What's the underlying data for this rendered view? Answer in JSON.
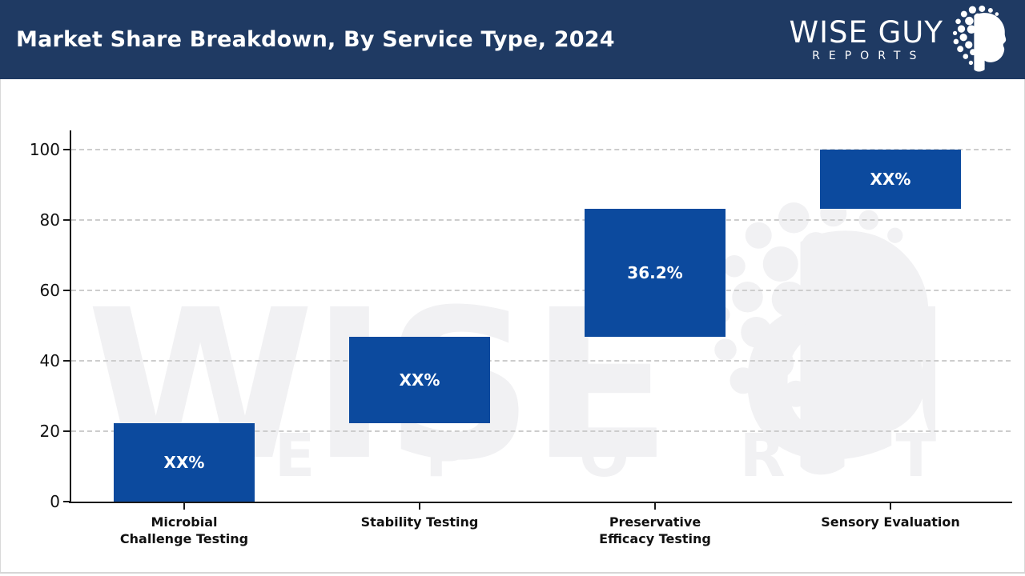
{
  "header": {
    "title": "Market Share Breakdown, By Service Type, 2024",
    "brand": {
      "line1": "WISE GUY",
      "line2": "REPORTS"
    }
  },
  "watermark": {
    "line1": "WISE GUY",
    "line2": "R E P O R T S"
  },
  "colors": {
    "header_bg": "#1f3a63",
    "bar": "#0c4a9e",
    "grid": "#cdcdcd",
    "axis": "#1a1a1a",
    "watermark": "#f1f1f3",
    "bar_label_text": "#ffffff"
  },
  "chart_data": {
    "type": "bar",
    "variant": "waterfall",
    "title": "Market Share Breakdown, By Service Type, 2024",
    "xlabel": "",
    "ylabel": "",
    "categories": [
      "Microbial Challenge Testing",
      "Stability Testing",
      "Preservative Efficacy Testing",
      "Sensory Evaluation"
    ],
    "category_lines": [
      [
        "Microbial",
        "Challenge Testing"
      ],
      [
        "Stability Testing"
      ],
      [
        "Preservative",
        "Efficacy Testing"
      ],
      [
        "Sensory Evaluation"
      ]
    ],
    "segments": [
      {
        "category": "Microbial Challenge Testing",
        "start": 0,
        "end": 22.3,
        "value": 22.3,
        "label": "XX%"
      },
      {
        "category": "Stability Testing",
        "start": 22.3,
        "end": 46.8,
        "value": 24.5,
        "label": "XX%"
      },
      {
        "category": "Preservative Efficacy Testing",
        "start": 46.8,
        "end": 83.0,
        "value": 36.2,
        "label": "36.2%"
      },
      {
        "category": "Sensory Evaluation",
        "start": 83.0,
        "end": 100,
        "value": 17.0,
        "label": "XX%"
      }
    ],
    "y_ticks": [
      0,
      20,
      40,
      60,
      80,
      100
    ],
    "ylim": [
      0,
      105
    ],
    "grid": {
      "horizontal": true,
      "style": "dashed"
    },
    "legend": "none",
    "bar_color": "#0c4a9e",
    "value_label_note": "values masked as XX% except Preservative Efficacy Testing (36.2%)"
  }
}
